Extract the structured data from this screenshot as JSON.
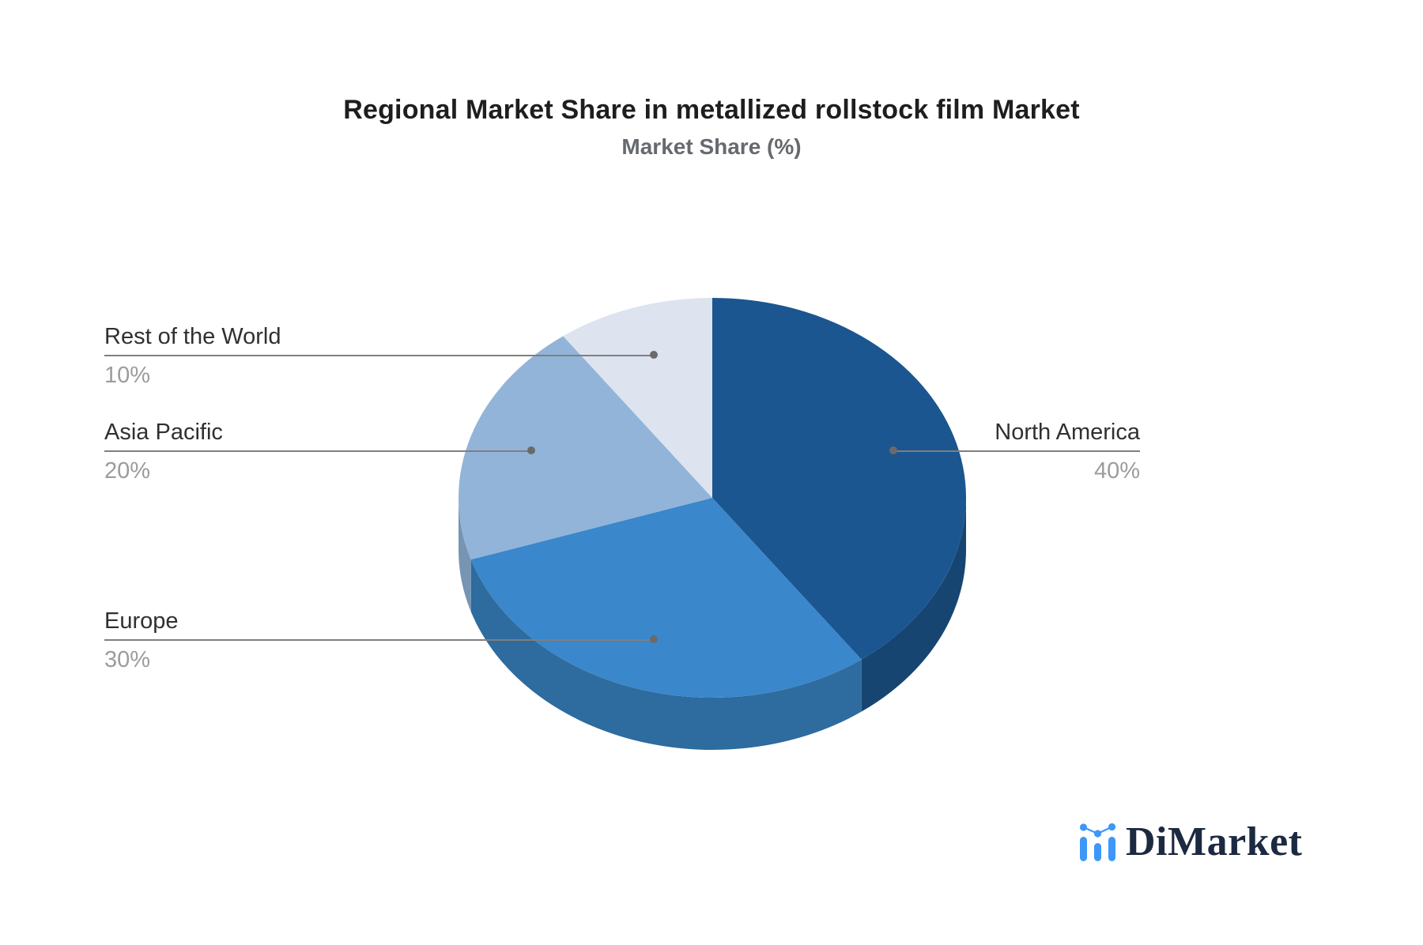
{
  "header": {
    "title": "Regional Market Share in metallized rollstock film Market",
    "subtitle": "Market Share (%)"
  },
  "chart_data": {
    "type": "pie",
    "title": "Regional Market Share in metallized rollstock film Market",
    "subtitle": "Market Share (%)",
    "unit": "%",
    "effect": "3d",
    "start_angle_deg": 0,
    "direction": "clockwise",
    "legend_position": "none",
    "slices": [
      {
        "label": "North America",
        "value": 40,
        "pct": "40%",
        "color": "#1b5690",
        "side_color": "#164572",
        "label_side": "right"
      },
      {
        "label": "Europe",
        "value": 30,
        "pct": "30%",
        "color": "#3a87cb",
        "side_color": "#2e6b9e",
        "label_side": "left"
      },
      {
        "label": "Asia Pacific",
        "value": 20,
        "pct": "20%",
        "color": "#92b4d9",
        "side_color": "#7695b3",
        "label_side": "left"
      },
      {
        "label": "Rest of the World",
        "value": 10,
        "pct": "10%",
        "color": "#dde3ef",
        "side_color": "#c3cede",
        "label_side": "left"
      }
    ],
    "connector_color": "#7f7f7f"
  },
  "branding": {
    "logo_text": "DiMarket",
    "logo_icon": "bar-line-chart-icon",
    "icon_color": "#3e97f8",
    "text_color": "#1b2941"
  }
}
